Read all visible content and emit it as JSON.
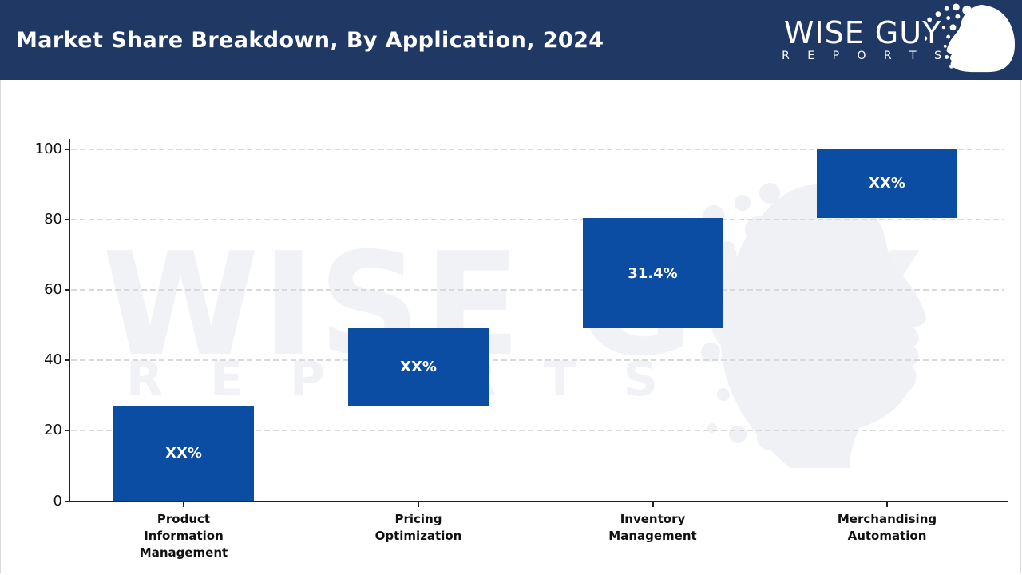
{
  "header": {
    "title": "Market Share Breakdown, By Application, 2024",
    "bg_color": "#1f3864",
    "logo": {
      "line1": "WISE GUY",
      "line2": "R E P O R T S"
    }
  },
  "watermark": {
    "line1": "WISE GUY",
    "line2": "R E P O R T S"
  },
  "chart_data": {
    "type": "bar",
    "subtype": "floating-waterfall",
    "title": "Market Share Breakdown, By Application, 2024",
    "xlabel": "",
    "ylabel": "",
    "ylim": [
      0,
      100
    ],
    "yticks": [
      0,
      20,
      40,
      60,
      80,
      100
    ],
    "grid": "horizontal dashed",
    "legend": "none",
    "bar_color": "#0b4da2",
    "value_label_color": "#ffffff",
    "categories": [
      "Product\nInformation\nManagement",
      "Pricing\nOptimization",
      "Inventory\nManagement",
      "Merchandising\nAutomation"
    ],
    "segments": [
      {
        "category": "Product Information Management",
        "start": 0,
        "end": 27,
        "label": "XX%"
      },
      {
        "category": "Pricing Optimization",
        "start": 27,
        "end": 49,
        "label": "XX%"
      },
      {
        "category": "Inventory Management",
        "start": 49,
        "end": 80.4,
        "label": "31.4%"
      },
      {
        "category": "Merchandising Automation",
        "start": 80.4,
        "end": 100,
        "label": "XX%"
      }
    ]
  }
}
